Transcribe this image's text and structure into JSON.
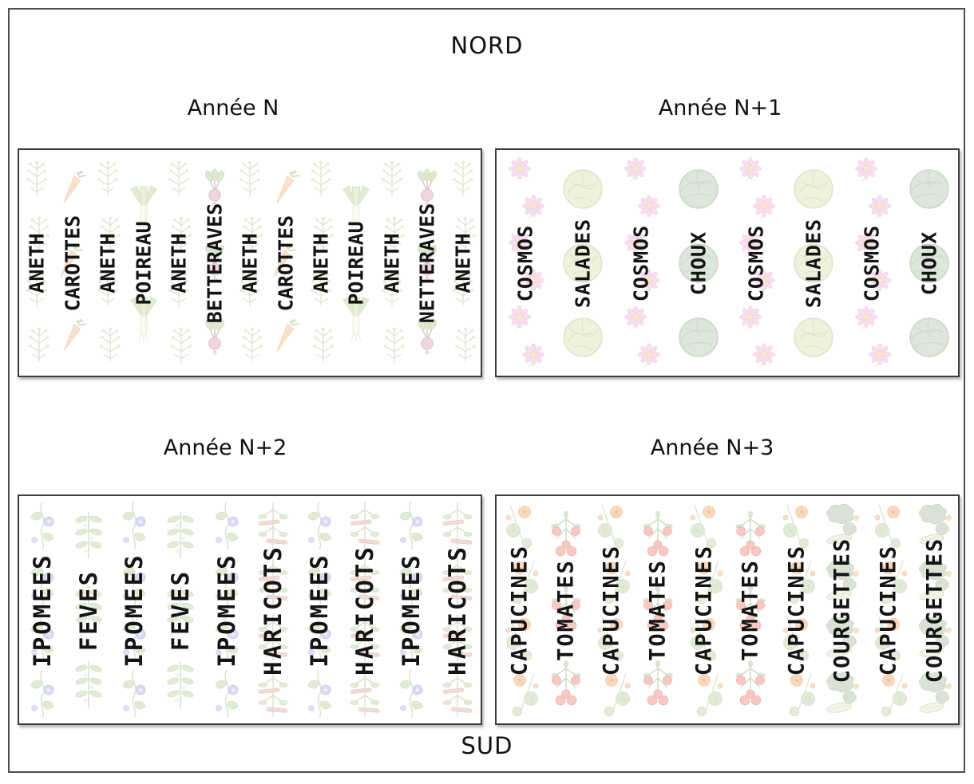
{
  "compass": {
    "north": "NORD",
    "south": "SUD"
  },
  "panels": [
    {
      "title": "Année N",
      "rows": [
        {
          "label": "ANETH",
          "icon": "dill"
        },
        {
          "label": "CAROTTES",
          "icon": "carrot"
        },
        {
          "label": "ANETH",
          "icon": "dill"
        },
        {
          "label": "POIREAU",
          "icon": "leek"
        },
        {
          "label": "ANETH",
          "icon": "dill"
        },
        {
          "label": "BETTERAVES",
          "icon": "beet"
        },
        {
          "label": "ANETH",
          "icon": "dill"
        },
        {
          "label": "CAROTTES",
          "icon": "carrot"
        },
        {
          "label": "ANETH",
          "icon": "dill"
        },
        {
          "label": "POIREAU",
          "icon": "leek"
        },
        {
          "label": "ANETH",
          "icon": "dill"
        },
        {
          "label": "NETTERAVES",
          "icon": "beet"
        },
        {
          "label": "ANETH",
          "icon": "dill"
        }
      ]
    },
    {
      "title": "Année N+1",
      "rows": [
        {
          "label": "COSMOS",
          "icon": "cosmos"
        },
        {
          "label": "SALADES",
          "icon": "lettuce"
        },
        {
          "label": "COSMOS",
          "icon": "cosmos"
        },
        {
          "label": "CHOUX",
          "icon": "cabbage"
        },
        {
          "label": "COSMOS",
          "icon": "cosmos"
        },
        {
          "label": "SALADES",
          "icon": "lettuce"
        },
        {
          "label": "COSMOS",
          "icon": "cosmos"
        },
        {
          "label": "CHOUX",
          "icon": "cabbage"
        }
      ]
    },
    {
      "title": "Année N+2",
      "rows": [
        {
          "label": "IPOMEES",
          "icon": "morning-glory"
        },
        {
          "label": "FEVES",
          "icon": "fava"
        },
        {
          "label": "IPOMEES",
          "icon": "morning-glory"
        },
        {
          "label": "FEVES",
          "icon": "fava"
        },
        {
          "label": "IPOMEES",
          "icon": "morning-glory"
        },
        {
          "label": "HARICOTS",
          "icon": "bean"
        },
        {
          "label": "IPOMEES",
          "icon": "morning-glory"
        },
        {
          "label": "HARICOTS",
          "icon": "bean"
        },
        {
          "label": "IPOMEES",
          "icon": "morning-glory"
        },
        {
          "label": "HARICOTS",
          "icon": "bean"
        }
      ]
    },
    {
      "title": "Année N+3",
      "rows": [
        {
          "label": "CAPUCINES",
          "icon": "nasturtium"
        },
        {
          "label": "TOMATES",
          "icon": "tomato"
        },
        {
          "label": "CAPUCINES",
          "icon": "nasturtium"
        },
        {
          "label": "TOMATES",
          "icon": "tomato"
        },
        {
          "label": "CAPUCINES",
          "icon": "nasturtium"
        },
        {
          "label": "TOMATES",
          "icon": "tomato"
        },
        {
          "label": "CAPUCINES",
          "icon": "nasturtium"
        },
        {
          "label": "COURGETTES",
          "icon": "zucchini"
        },
        {
          "label": "CAPUCINES",
          "icon": "nasturtium"
        },
        {
          "label": "COURGETTES",
          "icon": "zucchini"
        }
      ]
    }
  ],
  "colors": {
    "label_text": "#141414",
    "panel_border": "#3d3d3d",
    "frame_border": "#4f4f4f",
    "dill_green": "#a9c18e",
    "carrot_orange": "#f4ba80",
    "leek_green": "#b9d290",
    "beet_pink": "#d898ae",
    "cosmos_pink": "#efaed9",
    "lettuce_green": "#d8e2ac",
    "cabbage_green": "#afc5a8",
    "ipomee_violet": "#a5a5e3",
    "bean_pod_brown": "#dba79a",
    "nasturtium_orange": "#f4a55e",
    "tomato_red": "#f07a6c",
    "zucchini_green": "#a4b79b"
  }
}
